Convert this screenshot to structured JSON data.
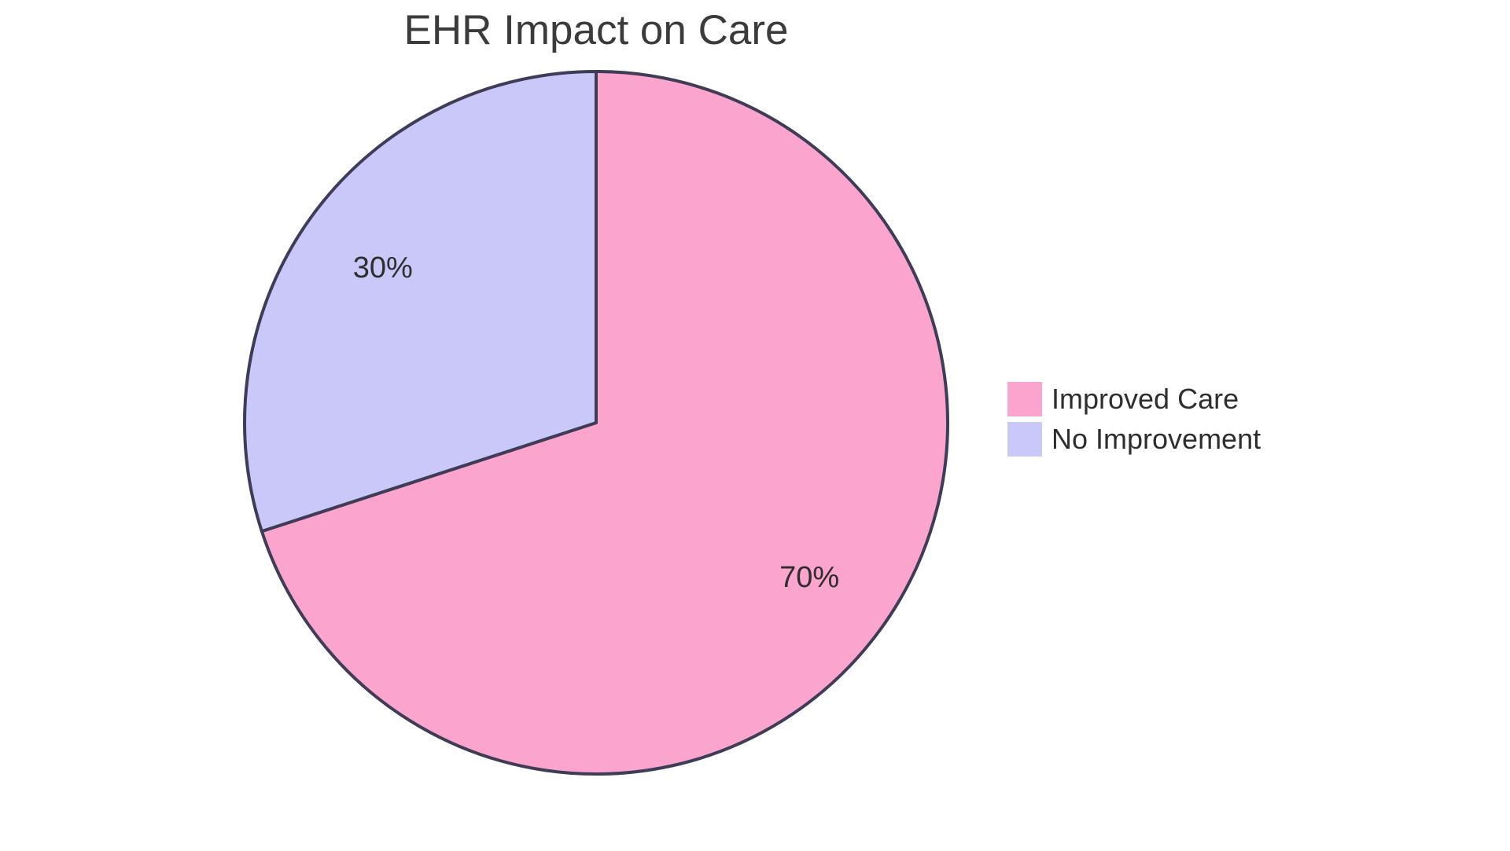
{
  "page": {
    "background": "#ffffff"
  },
  "chart_data": {
    "type": "pie",
    "title": "EHR Impact on Care",
    "labels": [
      "Improved Care",
      "No Improvement"
    ],
    "values": [
      70,
      30
    ],
    "slice_labels": [
      "70%",
      "30%"
    ],
    "colors": [
      "#fba4ce",
      "#c9c8f8"
    ],
    "stroke_color": "#3e3c56",
    "stroke_width": 4,
    "label_color": "#2e2e2e",
    "title_color": "#3b3b3b",
    "legend_position": "right",
    "start_angle_deg": 0,
    "direction": "clockwise"
  }
}
